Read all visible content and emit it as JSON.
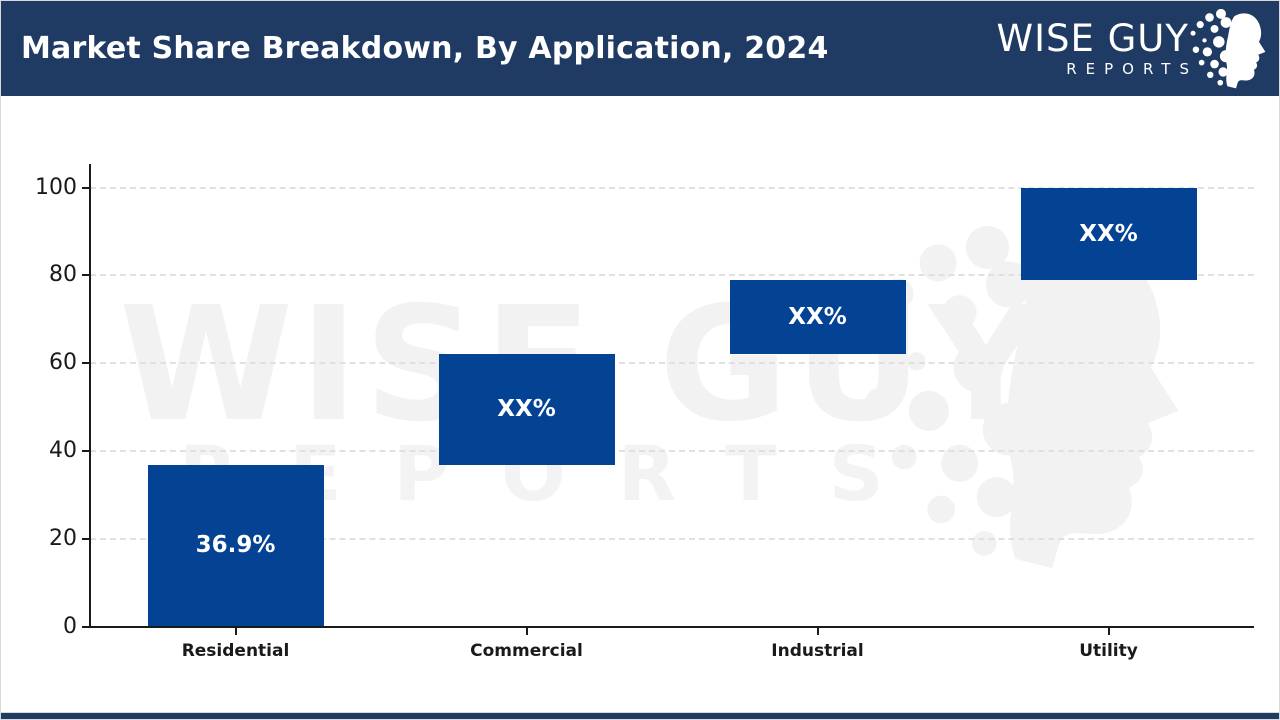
{
  "header": {
    "title": "Market Share Breakdown, By Application, 2024",
    "bg_color": "#1f3a63",
    "logo_line1": "WISE GUY",
    "logo_line2": "REPORTS"
  },
  "watermark": {
    "line1": "WISE GUY",
    "line2": "REPORTS"
  },
  "chart_data": {
    "type": "bar",
    "subtype": "waterfall",
    "title": "Market Share Breakdown, By Application, 2024",
    "categories": [
      "Residential",
      "Commercial",
      "Industrial",
      "Utility"
    ],
    "segments": [
      {
        "category": "Residential",
        "start": 0,
        "end": 36.9,
        "label": "36.9%"
      },
      {
        "category": "Commercial",
        "start": 36.9,
        "end": 62,
        "label": "XX%"
      },
      {
        "category": "Industrial",
        "start": 62,
        "end": 79,
        "label": "XX%"
      },
      {
        "category": "Utility",
        "start": 79,
        "end": 100,
        "label": "XX%"
      }
    ],
    "ylim": [
      0,
      100
    ],
    "yticks": [
      0,
      20,
      40,
      60,
      80,
      100
    ],
    "grid": "horizontal-dashed",
    "legend": "none",
    "bar_color": "#044294",
    "bar_label_color": "#ffffff",
    "axis_color": "#1a1a1a",
    "gridline_color": "#e0e0e0"
  }
}
